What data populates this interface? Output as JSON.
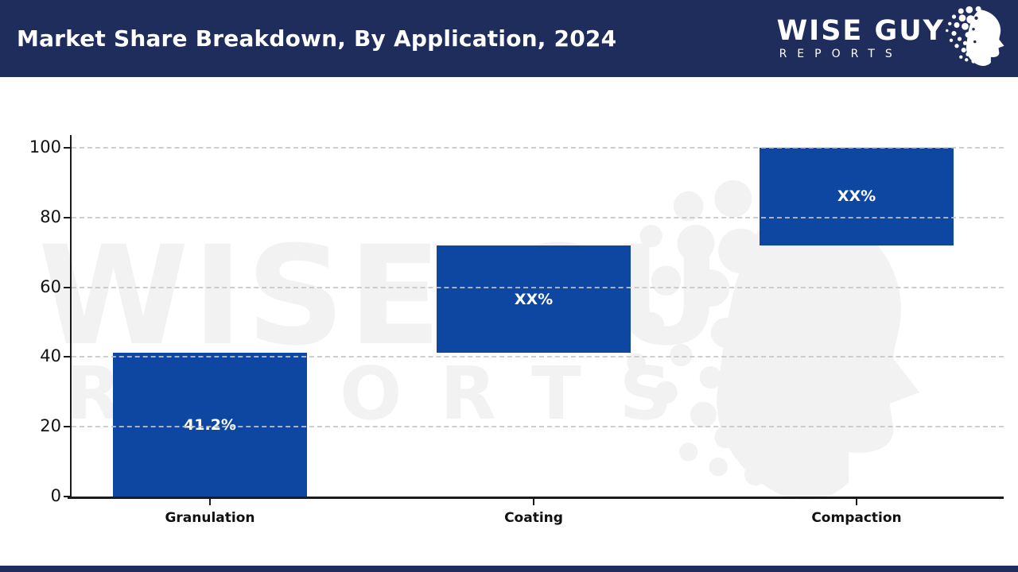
{
  "header": {
    "title": "Market Share Breakdown, By Application, 2024",
    "logo": {
      "line1": "WISE GUY",
      "line2": "REPORTS"
    }
  },
  "watermark": {
    "line1": "WISE GUY",
    "line2": "REPORTS"
  },
  "colors": {
    "header_bg": "#1f2d5c",
    "footer_bg": "#1f2d5c",
    "bar": "#0d47a1",
    "bar_label": "#ffffff",
    "grid": "#c5c5c5",
    "axis": "#1a1a1a",
    "watermark": "#f2f2f2"
  },
  "chart_data": {
    "type": "bar",
    "subtype": "floating-waterfall",
    "title": "Market Share Breakdown, By Application, 2024",
    "categories": [
      "Granulation",
      "Coating",
      "Compaction"
    ],
    "bars": [
      {
        "category": "Granulation",
        "start": 0,
        "end": 41.2,
        "label": "41.2%"
      },
      {
        "category": "Coating",
        "start": 41.2,
        "end": 72,
        "label": "XX%"
      },
      {
        "category": "Compaction",
        "start": 72,
        "end": 100,
        "label": "XX%"
      }
    ],
    "xlabel": "",
    "ylabel": "",
    "ylim": [
      0,
      105
    ],
    "yticks": [
      0,
      20,
      40,
      60,
      80,
      100
    ],
    "grid": "horizontal-dashed",
    "legend": "none"
  }
}
